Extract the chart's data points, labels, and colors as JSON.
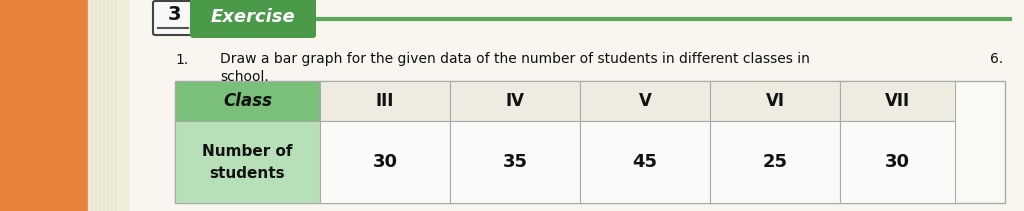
{
  "section_number": "3",
  "section_title": "Exercise",
  "question_number": "1.",
  "question_text": "Draw a bar graph for the given data of the number of students in different classes in",
  "question_text2": "school.",
  "side_number": "6.",
  "table_header": [
    "Class",
    "III",
    "IV",
    "V",
    "VI",
    "VII"
  ],
  "table_row_label_1": "Number of",
  "table_row_label_2": "students",
  "table_values": [
    30,
    35,
    45,
    25,
    30
  ],
  "orange_bg": "#e8823a",
  "page_bg": "#f5f2e8",
  "page_white": "#f8f6ee",
  "badge_green": "#4a9a4a",
  "badge_dark_green": "#3a7a3a",
  "badge_text": "#ffffff",
  "line_green": "#5aaa5a",
  "table_class_bg": "#7abf7a",
  "table_label_bg": "#b8e0b8",
  "table_header_bg": "#f0ede0",
  "table_data_bg": "#fafaf5",
  "table_border": "#aaaaaa",
  "text_dark": "#111111",
  "text_gray": "#555555"
}
